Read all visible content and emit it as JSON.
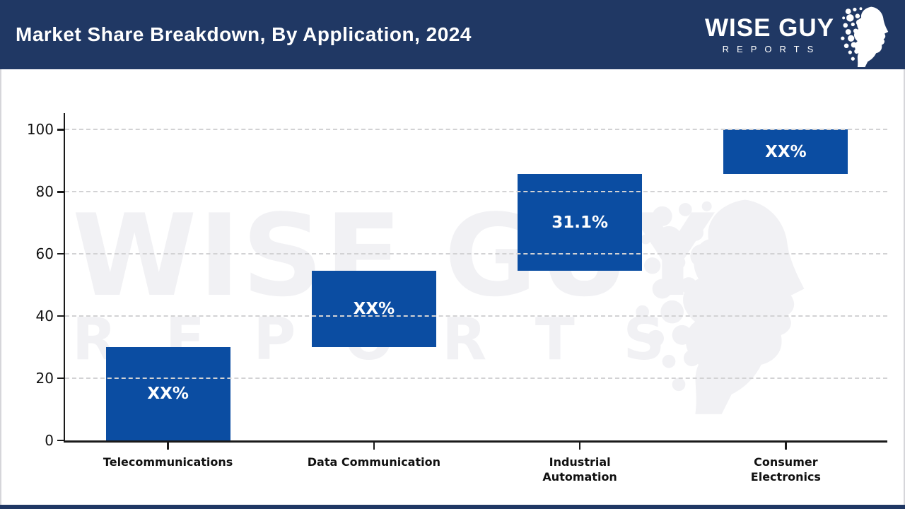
{
  "header": {
    "title": "Market Share Breakdown, By Application, 2024",
    "bg_color": "#203864",
    "title_color": "#ffffff",
    "logo": {
      "wordmark": "WISE GUY",
      "subtext": "REPORTS",
      "color": "#ffffff"
    }
  },
  "watermark": {
    "line1": "WISE GUY",
    "line2": "R E P O R T S",
    "color": "#f1f1f4"
  },
  "chart_data": {
    "type": "bar",
    "subtype": "waterfall",
    "title": "Market Share Breakdown, By Application, 2024",
    "xlabel": "",
    "ylabel": "",
    "categories": [
      "Telecommunications",
      "Data Communication",
      "Industrial Automation",
      "Consumer Electronics"
    ],
    "category_lines": [
      [
        "Telecommunications"
      ],
      [
        "Data Communication"
      ],
      [
        "Industrial",
        "Automation"
      ],
      [
        "Consumer",
        "Electronics"
      ]
    ],
    "segments": [
      {
        "category": "Telecommunications",
        "start": 0,
        "end": 30,
        "label": "XX%"
      },
      {
        "category": "Data Communication",
        "start": 30,
        "end": 54.6,
        "label": "XX%"
      },
      {
        "category": "Industrial Automation",
        "start": 54.6,
        "end": 85.7,
        "label": "31.1%"
      },
      {
        "category": "Consumer Electronics",
        "start": 85.7,
        "end": 100,
        "label": "XX%"
      }
    ],
    "ylim": [
      0,
      106
    ],
    "yticks": [
      0,
      20,
      40,
      60,
      80,
      100
    ],
    "grid": "horizontal-dashed-over-bars",
    "legend": "none",
    "bar_color": "#0b4da2",
    "bar_label_color": "#ffffff",
    "gridline_color": "#d2d2d4",
    "axis_color": "#1a1a1a",
    "tick_label_color": "#111111"
  }
}
